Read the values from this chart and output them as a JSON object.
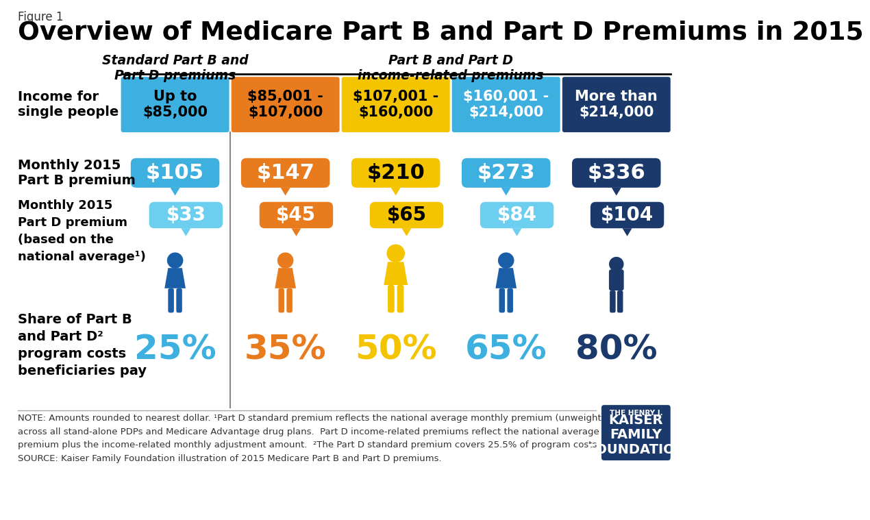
{
  "title": "Overview of Medicare Part B and Part D Premiums in 2015",
  "figure_label": "Figure 1",
  "bg_color": "#ffffff",
  "columns": [
    {
      "income": "Up to\n$85,000",
      "part_b": "$105",
      "part_d": "$33",
      "share": "25%",
      "header_color": "#3EB0E0",
      "bubble_b_color": "#3EB0E0",
      "bubble_d_color": "#6DCFF0",
      "share_color": "#3EB0E0",
      "person_color": "#1A5EA8",
      "text_color_income": "#000000",
      "text_color_b": "#ffffff",
      "text_color_d": "#ffffff"
    },
    {
      "income": "$85,001 -\n$107,000",
      "part_b": "$147",
      "part_d": "$45",
      "share": "35%",
      "header_color": "#E87B1E",
      "bubble_b_color": "#E87B1E",
      "bubble_d_color": "#E87B1E",
      "share_color": "#E87B1E",
      "person_color": "#E87B1E",
      "text_color_income": "#000000",
      "text_color_b": "#ffffff",
      "text_color_d": "#ffffff"
    },
    {
      "income": "$107,001 -\n$160,000",
      "part_b": "$210",
      "part_d": "$65",
      "share": "50%",
      "header_color": "#F5C400",
      "bubble_b_color": "#F5C400",
      "bubble_d_color": "#F5C400",
      "share_color": "#F5C400",
      "person_color": "#F5C400",
      "text_color_income": "#000000",
      "text_color_b": "#000000",
      "text_color_d": "#000000"
    },
    {
      "income": "$160,001 -\n$214,000",
      "part_b": "$273",
      "part_d": "$84",
      "share": "65%",
      "header_color": "#3EB0E0",
      "bubble_b_color": "#3EB0E0",
      "bubble_d_color": "#6DCFF0",
      "share_color": "#3EB0E0",
      "person_color": "#1A5EA8",
      "text_color_income": "#ffffff",
      "text_color_b": "#ffffff",
      "text_color_d": "#ffffff"
    },
    {
      "income": "More than\n$214,000",
      "part_b": "$336",
      "part_d": "$104",
      "share": "80%",
      "header_color": "#1B3A6B",
      "bubble_b_color": "#1B3A6B",
      "bubble_d_color": "#1B3A6B",
      "share_color": "#1B3A6B",
      "person_color": "#1B3A6B",
      "text_color_income": "#ffffff",
      "text_color_b": "#ffffff",
      "text_color_d": "#ffffff"
    }
  ],
  "col1_header": "Standard Part B and\nPart D premiums",
  "col2_header": "Part B and Part D\nincome-related premiums",
  "row_labels": [
    "Income for\nsingle people",
    "Monthly 2015\nPart B premium",
    "Monthly 2015\nPart D premium\n(based on the\nnational average¹)",
    "Share of Part B\nand Part D²\nprogram costs\nbeneficiaries pay"
  ],
  "note": "NOTE: Amounts rounded to nearest dollar. ¹Part D standard premium reflects the national average monthly premium (unweighted)\nacross all stand-alone PDPs and Medicare Advantage drug plans.  Part D income-related premiums reflect the national average\npremium plus the income-related monthly adjustment amount.  ²The Part D standard premium covers 25.5% of program costs.\nSOURCE: Kaiser Family Foundation illustration of 2015 Medicare Part B and Part D premiums."
}
